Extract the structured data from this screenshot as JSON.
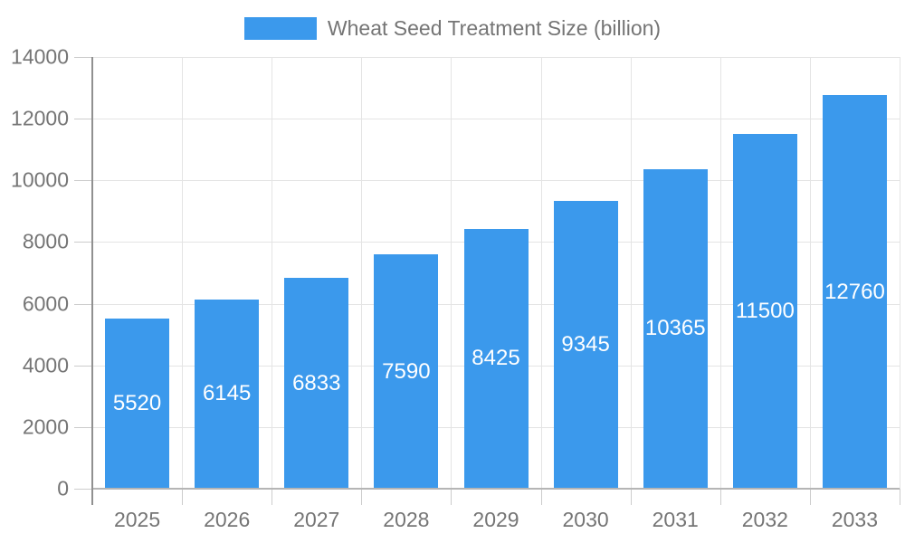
{
  "chart_data": {
    "type": "bar",
    "title": "Wheat Seed Treatment Size (billion)",
    "categories": [
      "2025",
      "2026",
      "2027",
      "2028",
      "2029",
      "2030",
      "2031",
      "2032",
      "2033"
    ],
    "values": [
      5520,
      6145,
      6833,
      7590,
      8425,
      9345,
      10365,
      11500,
      12760
    ],
    "value_labels": [
      "5520",
      "6145",
      "6833",
      "7590",
      "8425",
      "9345",
      "10365",
      "11500",
      "12760"
    ],
    "xlabel": "",
    "ylabel": "",
    "ylim": [
      0,
      14000
    ],
    "yticks": [
      0,
      2000,
      4000,
      6000,
      8000,
      10000,
      12000,
      14000
    ],
    "ytick_labels": [
      "0",
      "2000",
      "4000",
      "6000",
      "8000",
      "10000",
      "12000",
      "14000"
    ],
    "grid": "on",
    "legend_position": "top-center",
    "colors": {
      "bar": "#3b99ec",
      "value_label": "#ffffff",
      "axis_text": "#757575",
      "gridline": "#e4e4e4",
      "tick": "#cccccc",
      "axis_line": "#909090",
      "baseline": "#b5b5b5",
      "background": "#ffffff"
    }
  }
}
